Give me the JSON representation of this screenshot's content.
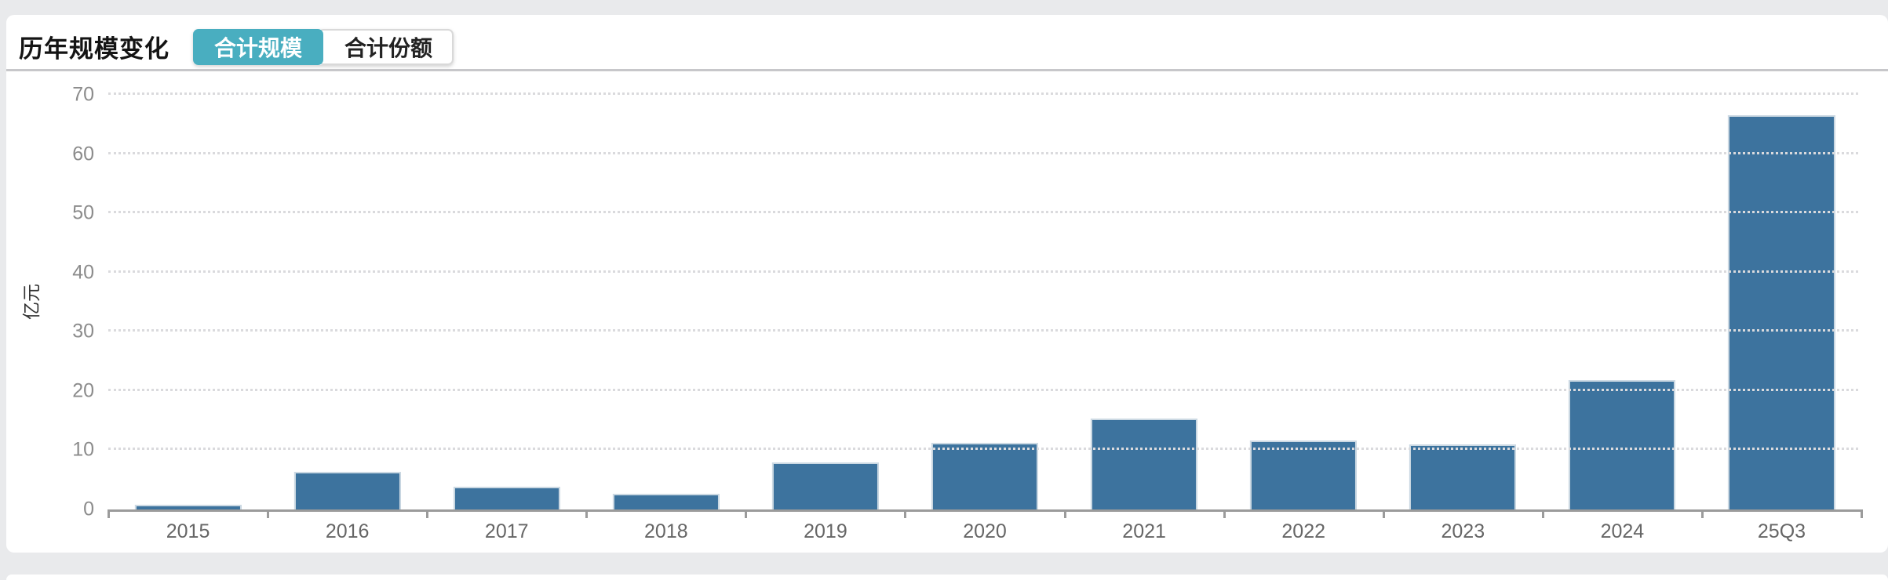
{
  "page": {
    "background_color": "#e9eaec",
    "card_color": "#ffffff"
  },
  "header": {
    "title": "历年规模变化",
    "toggle": {
      "active_label": "合计规模",
      "inactive_label": "合计份额",
      "active_color": "#49aec0"
    }
  },
  "chart_data": {
    "type": "bar",
    "title": "历年规模变化",
    "categories": [
      "2015",
      "2016",
      "2017",
      "2018",
      "2019",
      "2020",
      "2021",
      "2022",
      "2023",
      "2024",
      "25Q3"
    ],
    "values": [
      0.8,
      6.3,
      3.9,
      2.7,
      8.0,
      11.2,
      15.3,
      11.7,
      11.0,
      21.8,
      66.5
    ],
    "ylabel": "亿元",
    "xlabel": "",
    "yticks": [
      0,
      10,
      20,
      30,
      40,
      50,
      60,
      70
    ],
    "ylim": [
      0,
      70
    ],
    "grid": "horizontal-dotted",
    "legend_position": "none",
    "bar_color": "#3d739e",
    "bar_border_color": "#ccd9e3",
    "gridline_color": "#dadadd",
    "axis_line_color": "#9b9b9b"
  }
}
